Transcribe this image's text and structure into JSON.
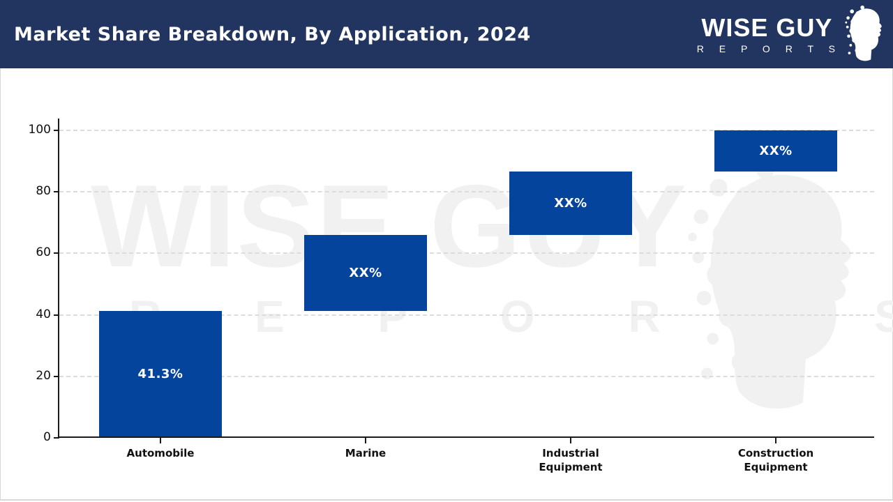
{
  "header": {
    "title": "Market Share Breakdown, By Application, 2024",
    "logo": {
      "line1": "WISE GUY",
      "line2": "R E P O R T S"
    }
  },
  "watermark": {
    "line1": "WISE GUY",
    "line2": "R E P O R T S"
  },
  "colors": {
    "header_bg": "#213560",
    "bar": "#04449c",
    "gridline": "#dcdcdc",
    "axis": "#1a1a1a",
    "watermark": "#f1f1f1",
    "bar_label_text": "#ffffff"
  },
  "chart_data": {
    "type": "bar",
    "subtype": "waterfall",
    "title": "Market Share Breakdown, By Application, 2024",
    "categories": [
      "Automobile",
      "Marine",
      "Industrial\nEquipment",
      "Construction\nEquipment"
    ],
    "segments": [
      {
        "category": "Automobile",
        "start": 0,
        "end": 41.3,
        "label": "41.3%"
      },
      {
        "category": "Marine",
        "start": 41.3,
        "end": 66,
        "label": "XX%"
      },
      {
        "category": "Industrial Equipment",
        "start": 66,
        "end": 86.6,
        "label": "XX%"
      },
      {
        "category": "Construction Equipment",
        "start": 86.6,
        "end": 100,
        "label": "XX%"
      }
    ],
    "xlabel": "",
    "ylabel": "",
    "ylim": [
      0,
      100
    ],
    "yticks": [
      0,
      20,
      40,
      60,
      80,
      100
    ],
    "grid": "horizontal-dashed",
    "legend": "none",
    "note": "Values for Marine, Industrial Equipment and Construction Equipment are masked as XX%"
  }
}
